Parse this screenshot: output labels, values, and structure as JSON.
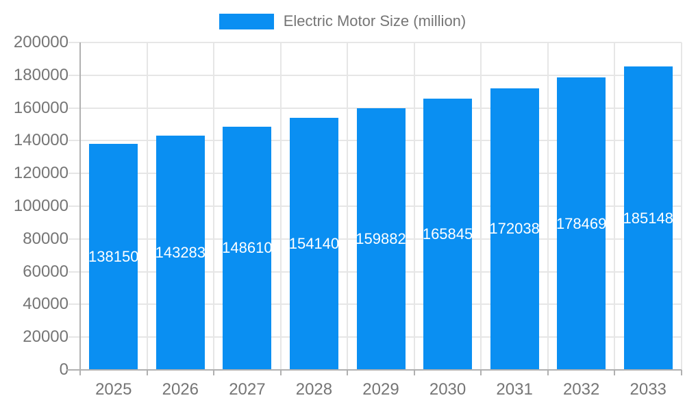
{
  "colors": {
    "bar": "#0a8ff2",
    "grid": "#e6e6e6",
    "axis": "#b0b0b0",
    "text": "#757575",
    "bar_label": "#ffffff",
    "background": "#ffffff"
  },
  "chart_data": {
    "type": "bar",
    "title": "Electric Motor Size (million)",
    "categories": [
      "2025",
      "2026",
      "2027",
      "2028",
      "2029",
      "2030",
      "2031",
      "2032",
      "2033"
    ],
    "series": [
      {
        "name": "Electric Motor Size (million)",
        "values": [
          138150,
          143283,
          148610,
          154140,
          159882,
          165845,
          172038,
          178469,
          185148
        ]
      }
    ],
    "value_labels": {
      "visible": true,
      "position": "center-inside-bar",
      "color": "#ffffff"
    },
    "xlabel": "",
    "ylabel": "",
    "ylim": [
      0,
      200000
    ],
    "ytick_step": 20000,
    "ytick_labels": [
      "0",
      "20000",
      "40000",
      "60000",
      "80000",
      "100000",
      "120000",
      "140000",
      "160000",
      "180000",
      "200000"
    ],
    "grid": true,
    "legend_position": "top"
  }
}
